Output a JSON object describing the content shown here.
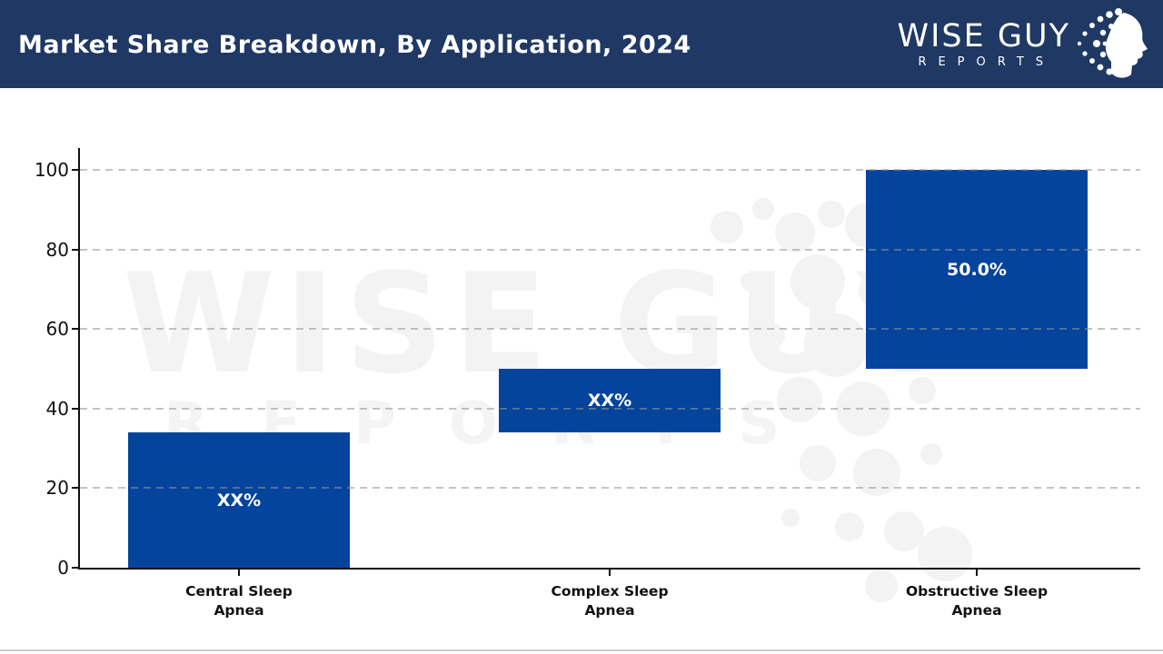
{
  "header": {
    "title": "Market Share Breakdown, By Application, 2024",
    "logo_line1": "WISE GUY",
    "logo_line2": "REPORTS",
    "bg_color": "#1f3864",
    "text_color": "#ffffff"
  },
  "watermark": {
    "line1": "WISE GUY",
    "line2": "REPORTS"
  },
  "chart_data": {
    "type": "bar",
    "subtype": "floating-segment-bars",
    "title": "Market Share Breakdown, By Application, 2024",
    "categories": [
      "Central Sleep Apnea",
      "Complex Sleep Apnea",
      "Obstructive Sleep Apnea"
    ],
    "bars": [
      {
        "category": "Central Sleep Apnea",
        "start": 0,
        "end": 34,
        "label": "XX%"
      },
      {
        "category": "Complex Sleep Apnea",
        "start": 34,
        "end": 50,
        "label": "XX%"
      },
      {
        "category": "Obstructive Sleep Apnea",
        "start": 50,
        "end": 100,
        "label": "50.0%"
      }
    ],
    "xlabel": "",
    "ylabel": "",
    "yticks": [
      0,
      20,
      40,
      60,
      80,
      100
    ],
    "ylim": [
      0,
      105.5
    ],
    "grid": "dashed-horizontal",
    "legend": "none",
    "bar_color": "#04449c",
    "bar_label_color": "#ffffff",
    "axis_color": "#111111",
    "grid_color": "#949494"
  }
}
